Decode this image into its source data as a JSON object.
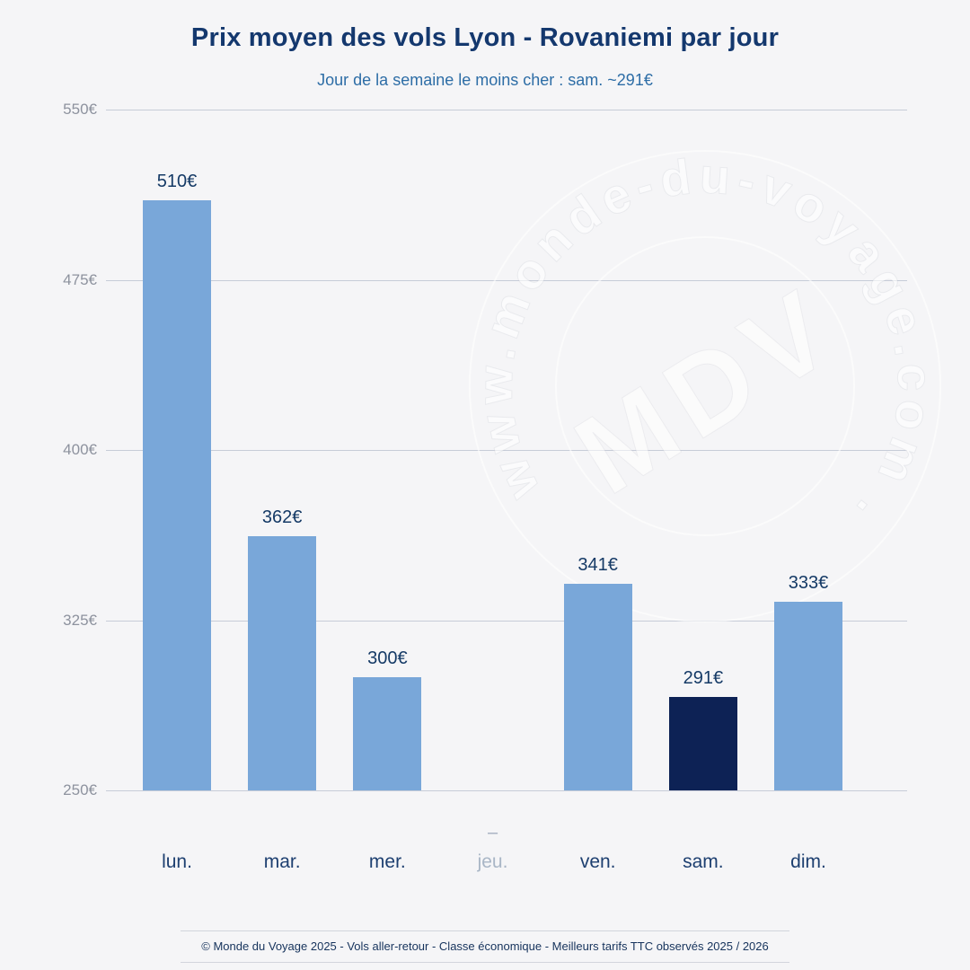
{
  "title": "Prix moyen des vols Lyon - Rovaniemi par jour",
  "subtitle": "Jour de la semaine le moins cher : sam. ~291€",
  "footer": "© Monde du Voyage 2025 - Vols aller-retour - Classe économique - Meilleurs tarifs TTC observés 2025 / 2026",
  "watermark": {
    "circle_text": "www.monde-du-voyage.com .",
    "center_text": "MDV"
  },
  "colors": {
    "background": "#f5f5f7",
    "bar": "#79a7d9",
    "highlight_bar": "#0d2255",
    "gridline": "#c7ccd8",
    "title_navy": "#14386e",
    "subtitle_blue": "#2d6da6"
  },
  "chart_data": {
    "type": "bar",
    "title": "Prix moyen des vols Lyon - Rovaniemi par jour",
    "subtitle": "Jour de la semaine le moins cher : sam. ~291€",
    "categories": [
      "lun.",
      "mar.",
      "mer.",
      "jeu.",
      "ven.",
      "sam.",
      "dim."
    ],
    "values": [
      510,
      362,
      300,
      null,
      341,
      291,
      333
    ],
    "value_labels": [
      "510€",
      "362€",
      "300€",
      "–",
      "341€",
      "291€",
      "333€"
    ],
    "missing_placeholder": "–",
    "y_ticks": [
      550,
      475,
      400,
      325,
      250
    ],
    "y_tick_labels": [
      "550€",
      "475€",
      "400€",
      "325€",
      "250€"
    ],
    "ylim": [
      250,
      550
    ],
    "grid": true,
    "legend": "none",
    "bar_color": "#79a7d9",
    "highlight_color": "#0d2255",
    "highlight_index": 5,
    "muted_category_index": 3,
    "currency": "EUR"
  }
}
